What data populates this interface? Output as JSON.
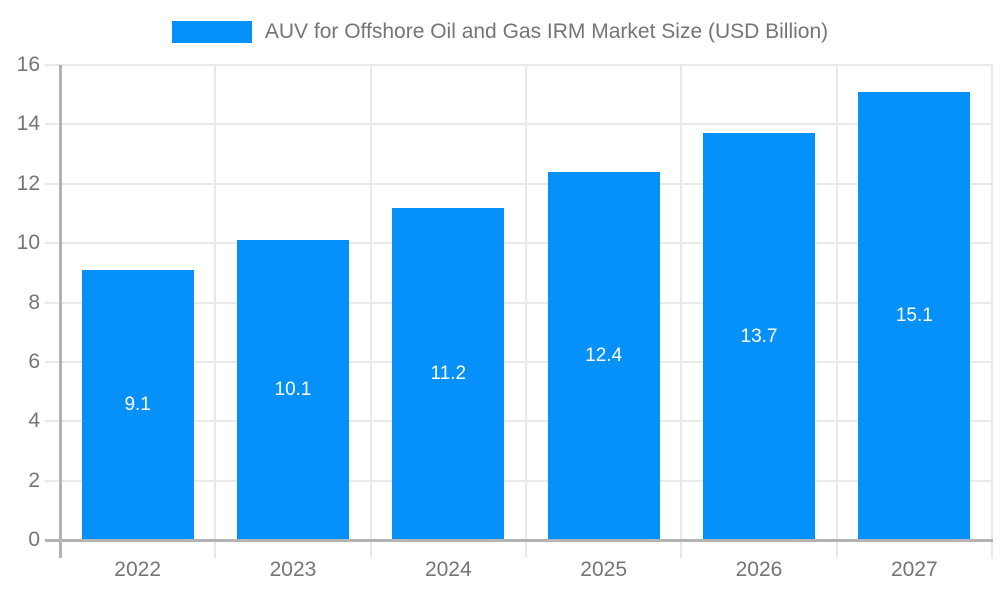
{
  "legend": {
    "label": "AUV for Offshore Oil and Gas IRM Market Size (USD Billion)"
  },
  "chart_data": {
    "type": "bar",
    "title": "AUV for Offshore Oil and Gas IRM Market Size (USD Billion)",
    "series_name": "AUV for Offshore Oil and Gas IRM Market Size (USD Billion)",
    "categories": [
      "2022",
      "2023",
      "2024",
      "2025",
      "2026",
      "2027"
    ],
    "values": [
      9.1,
      10.1,
      11.2,
      12.4,
      13.7,
      15.1
    ],
    "xlabel": "",
    "ylabel": "",
    "ylim": [
      0,
      16
    ],
    "ytick_step": 2,
    "ytick_labels": [
      "0",
      "2",
      "4",
      "6",
      "8",
      "10",
      "12",
      "14",
      "16"
    ],
    "grid": true,
    "legend_position": "top",
    "colors": {
      "bar": "#0690FA",
      "bar_label_text": "#ffffff",
      "axis_text": "#757575",
      "grid_line": "#e9e9e9",
      "axis_line": "#b3b3b3",
      "background": "#ffffff"
    }
  }
}
